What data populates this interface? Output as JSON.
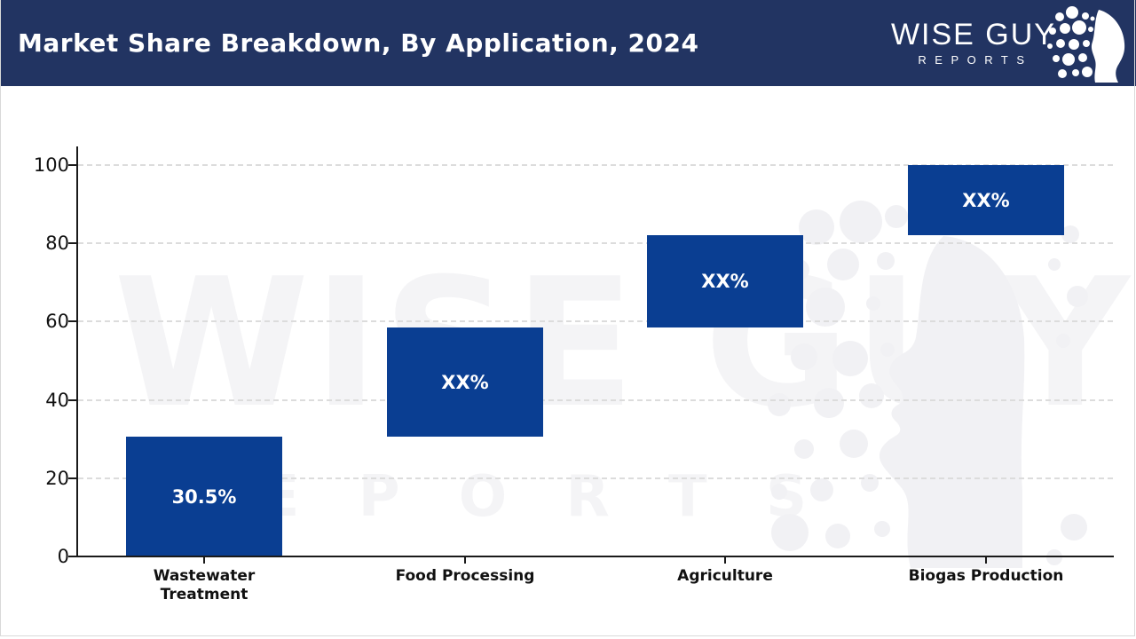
{
  "header": {
    "title": "Market Share Breakdown, By Application, 2024",
    "logo": {
      "line1": "WISE GUY",
      "line2": "REPORTS"
    }
  },
  "watermark": {
    "line1": "WISE GUY",
    "line2": "R E P O R T S"
  },
  "chart_data": {
    "type": "bar",
    "subtype": "waterfall",
    "title": "Market Share Breakdown, By Application, 2024",
    "categories": [
      "Wastewater Treatment",
      "Food Processing",
      "Agriculture",
      "Biogas Production"
    ],
    "categories_display": [
      "Wastewater\nTreatment",
      "Food Processing",
      "Agriculture",
      "Biogas Production"
    ],
    "segments": [
      {
        "category": "Wastewater\nTreatment",
        "start": 0,
        "end": 30.5,
        "value": 30.5,
        "label": "30.5%"
      },
      {
        "category": "Food Processing",
        "start": 30.5,
        "end": 58.5,
        "value": 28,
        "label": "XX%"
      },
      {
        "category": "Agriculture",
        "start": 58.5,
        "end": 82,
        "value": 23.5,
        "label": "XX%"
      },
      {
        "category": "Biogas Production",
        "start": 82,
        "end": 100,
        "value": 18,
        "label": "XX%"
      }
    ],
    "xlabel": "",
    "ylabel": "",
    "ylim": [
      0,
      100
    ],
    "yticks": [
      0,
      20,
      40,
      60,
      80,
      100
    ],
    "grid": "horizontal-dashed",
    "legend": "none",
    "colors": {
      "bar": "#0a3e92",
      "bar_label": "#ffffff",
      "gridline": "#dcdcdc",
      "axis": "#1a1a1a",
      "header_bg": "#223462",
      "header_text": "#ffffff",
      "watermark": "#f4f4f6"
    }
  }
}
